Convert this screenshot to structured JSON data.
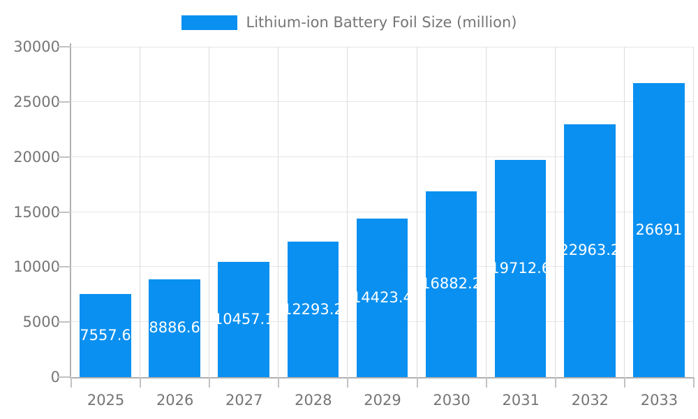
{
  "chart_data": {
    "type": "bar",
    "title": "Lithium-ion Battery Foil Size (million)",
    "legend_position": "top-center",
    "categories": [
      "2025",
      "2026",
      "2027",
      "2028",
      "2029",
      "2030",
      "2031",
      "2032",
      "2033"
    ],
    "values": [
      7557.6,
      8886.6,
      10457.1,
      12293.2,
      14423.4,
      16882.2,
      19712.6,
      22963.2,
      26691
    ],
    "bar_value_labels": [
      "7557.6",
      "8886.6",
      "10457.1",
      "12293.2",
      "14423.4",
      "16882.2",
      "19712.6",
      "22963.2",
      "26691"
    ],
    "xlabel": "",
    "ylabel": "",
    "ylim": [
      0,
      30000
    ],
    "yticks": [
      0,
      5000,
      10000,
      15000,
      20000,
      25000,
      30000
    ],
    "grid": true,
    "colors": {
      "bar": "#0a90f0",
      "bar_label": "#ffffff",
      "axis_text": "#757575",
      "grid_horizontal": "#e6e6e6",
      "grid_vertical": "#dcdcdc",
      "axis_line": "#b0b0b0",
      "tick_line": "#c2c2c2",
      "background": "#ffffff"
    }
  }
}
